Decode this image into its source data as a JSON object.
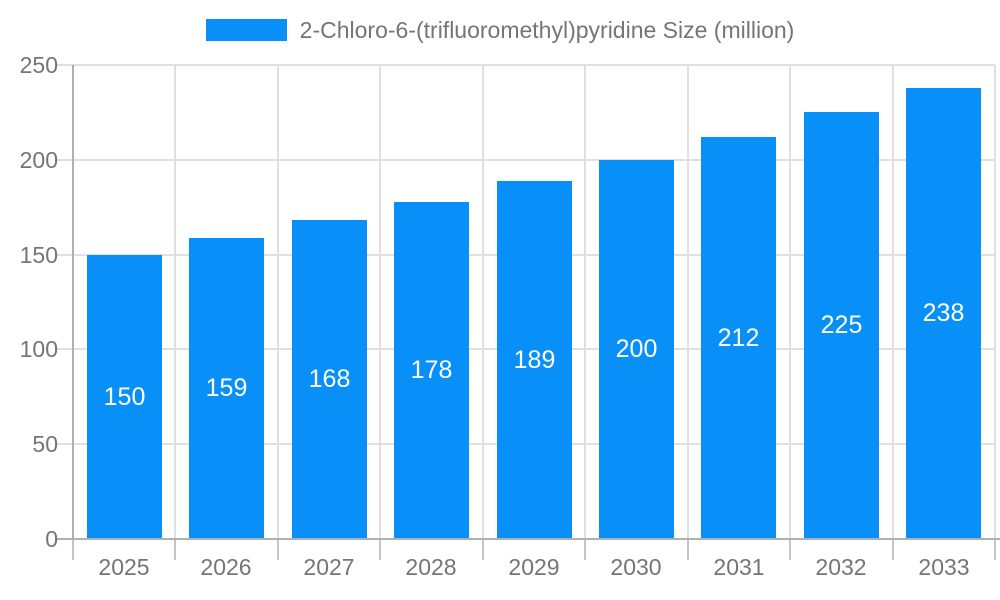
{
  "chart_data": {
    "type": "bar",
    "legend_label": "2-Chloro-6-(trifluoromethyl)pyridine Size (million)",
    "legend_position": "top",
    "categories": [
      "2025",
      "2026",
      "2027",
      "2028",
      "2029",
      "2030",
      "2031",
      "2032",
      "2033"
    ],
    "values": [
      150,
      159,
      168,
      178,
      189,
      200,
      212,
      225,
      238
    ],
    "xlabel": "",
    "ylabel": "",
    "ylim": [
      0,
      250
    ],
    "yticks": [
      0,
      50,
      100,
      150,
      200,
      250
    ],
    "grid": true,
    "colors": {
      "bar": "#0890f8",
      "value_label": "#ffffff",
      "axis_text": "#757575",
      "gridline": "#e0e0e0",
      "axis_line": "#b0b0b0",
      "tick": "#c4c4c4",
      "background": "#ffffff"
    }
  }
}
